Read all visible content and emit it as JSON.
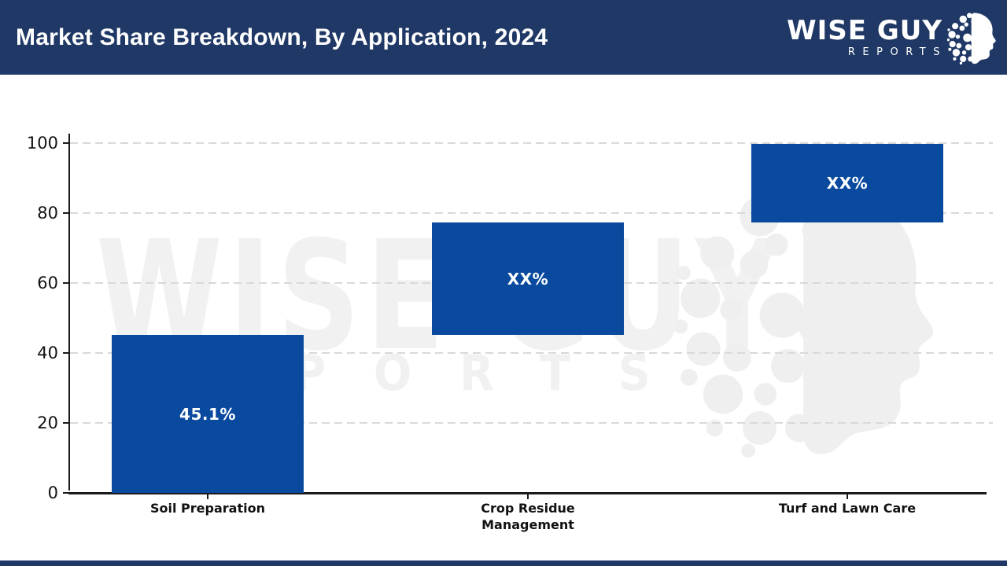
{
  "header": {
    "title": "Market Share Breakdown, By Application, 2024",
    "logo": {
      "line1": "WISE GUY",
      "line2": "REPORTS"
    }
  },
  "watermark": {
    "line1": "WISE GUY",
    "line2": "REPORTS"
  },
  "chart_data": {
    "type": "bar",
    "subtype": "floating-waterfall",
    "title": "Market Share Breakdown, By Application, 2024",
    "categories": [
      "Soil Preparation",
      "Crop Residue\nManagement",
      "Turf and Lawn Care"
    ],
    "segments": [
      {
        "category": "Soil Preparation",
        "start": 0,
        "end": 45.1,
        "label": "45.1%"
      },
      {
        "category": "Crop Residue Management",
        "start": 45.1,
        "end": 77.3,
        "label": "XX%"
      },
      {
        "category": "Turf and Lawn Care",
        "start": 77.3,
        "end": 99.8,
        "label": "XX%"
      }
    ],
    "ylim": [
      0,
      100
    ],
    "yticks": [
      0,
      20,
      40,
      60,
      80,
      100
    ],
    "grid": "horizontal-dashed",
    "legend": "none",
    "bar_color": "#0a4a9e",
    "bar_label_color": "#ffffff",
    "axis_color": "#1a1a1a",
    "gridline_color": "#d9d9d9",
    "header_color": "#1f3866",
    "watermark_color": "#f1f1f1"
  }
}
